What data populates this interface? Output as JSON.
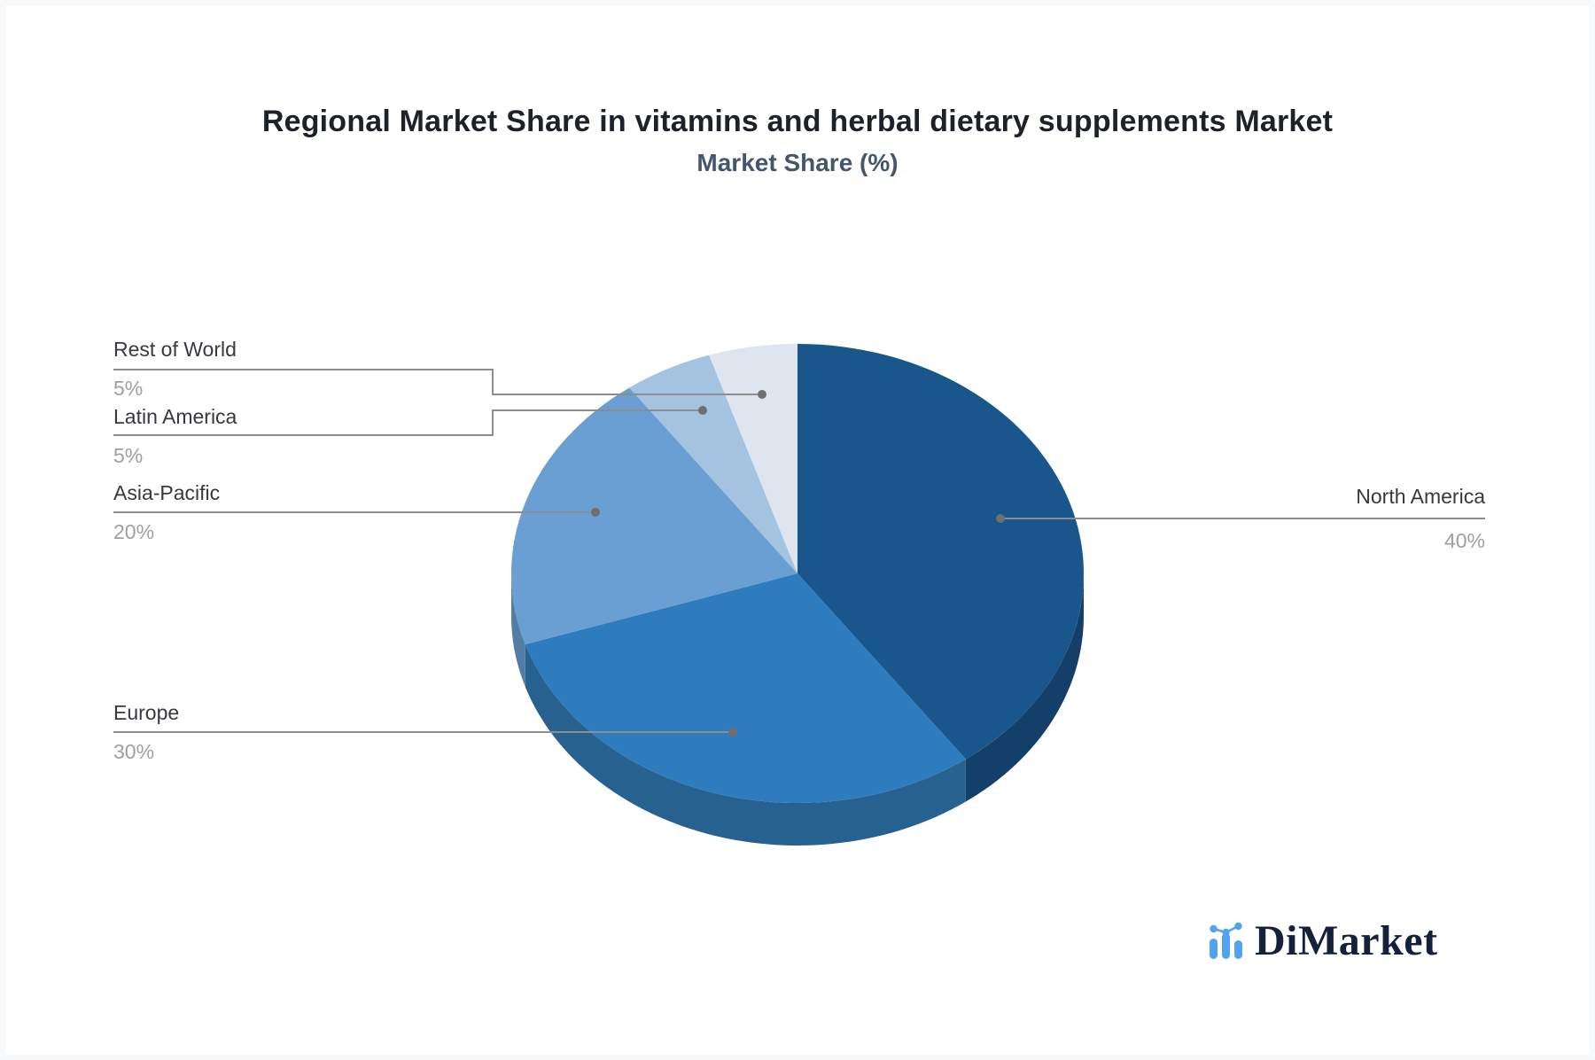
{
  "title": "Regional Market Share in vitamins and herbal dietary supplements Market",
  "subtitle": "Market Share (%)",
  "chart_data": {
    "type": "pie",
    "style": "3d",
    "title": "Regional Market Share in vitamins and herbal dietary supplements Market",
    "subtitle": "Market Share (%)",
    "unit": "%",
    "start_angle_deg": 0,
    "direction": "clockwise",
    "legend_position": "none",
    "label_style": "callout-lines",
    "slices": [
      {
        "label": "North America",
        "value": 40,
        "pct_label": "40%",
        "color": "#19568C",
        "side_color": "#133F68"
      },
      {
        "label": "Europe",
        "value": 30,
        "pct_label": "30%",
        "color": "#2E7CBE",
        "side_color": "#26618F"
      },
      {
        "label": "Asia-Pacific",
        "value": 20,
        "pct_label": "20%",
        "color": "#699FD2",
        "side_color": "#527DA6"
      },
      {
        "label": "Latin America",
        "value": 5,
        "pct_label": "5%",
        "color": "#A4C3E0",
        "side_color": "#7E9BB8"
      },
      {
        "label": "Rest of World",
        "value": 5,
        "pct_label": "5%",
        "color": "#DFE5EE",
        "side_color": "#B3BCC9"
      }
    ]
  },
  "leader_lines": {
    "line_color": "#8d8d8d",
    "dot_color": "#6f6f6f"
  },
  "logo": {
    "text": "DiMarket",
    "icon_color": "#4FA3F2",
    "text_color": "#15213a"
  }
}
